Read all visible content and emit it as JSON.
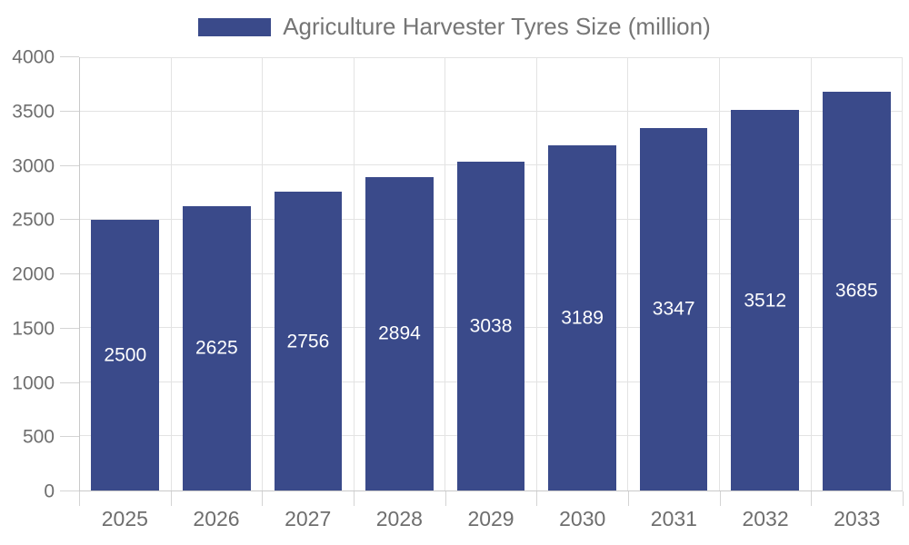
{
  "chart_data": {
    "type": "bar",
    "title": "Agriculture Harvester Tyres Size (million)",
    "categories": [
      "2025",
      "2026",
      "2027",
      "2028",
      "2029",
      "2030",
      "2031",
      "2032",
      "2033"
    ],
    "values": [
      2500,
      2625,
      2756,
      2894,
      3038,
      3189,
      3347,
      3512,
      3685
    ],
    "value_labels_shown": true,
    "xlabel": "",
    "ylabel": "",
    "ylim": [
      0,
      4000
    ],
    "yticks": [
      0,
      500,
      1000,
      1500,
      2000,
      2500,
      3000,
      3500,
      4000
    ],
    "grid": true,
    "legend_position": "top"
  },
  "colors": {
    "bar": "#3A4A8A",
    "gridline": "#E3E3E3",
    "axis_line": "#C9C9C9",
    "tick_mark": "#D4D4D4",
    "tick_label": "#6E6E6E",
    "legend_text": "#757575",
    "bar_value_label": "#FFFFFF",
    "background": "#FFFFFF"
  }
}
